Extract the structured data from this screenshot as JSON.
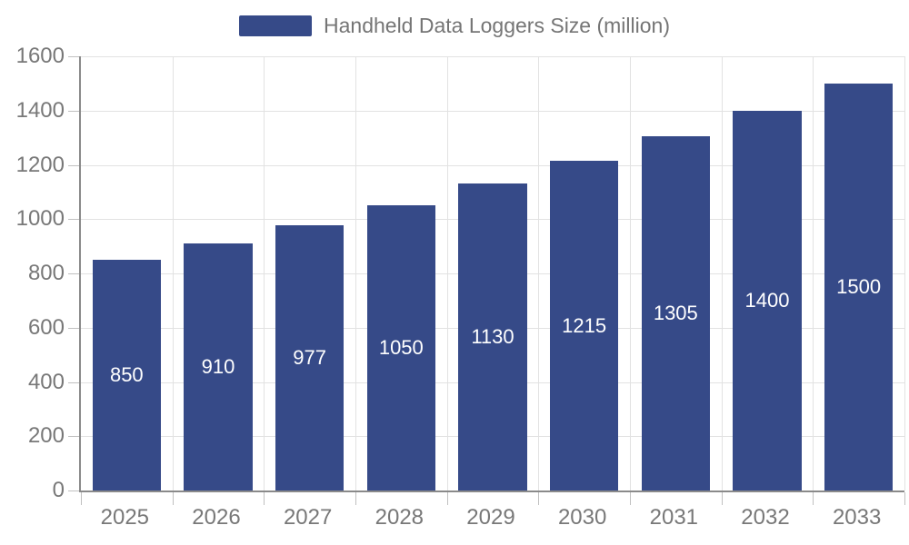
{
  "legend": {
    "label": "Handheld Data Loggers Size (million)"
  },
  "chart_data": {
    "type": "bar",
    "title": "Handheld Data Loggers Size (million)",
    "categories": [
      "2025",
      "2026",
      "2027",
      "2028",
      "2029",
      "2030",
      "2031",
      "2032",
      "2033"
    ],
    "values": [
      850,
      910,
      977,
      1050,
      1130,
      1215,
      1305,
      1400,
      1500
    ],
    "xlabel": "",
    "ylabel": "",
    "ylim": [
      0,
      1600
    ],
    "yticks": [
      0,
      200,
      400,
      600,
      800,
      1000,
      1200,
      1400,
      1600
    ],
    "grid": true,
    "legend_position": "top-center",
    "value_labels": "centered-inside-bars",
    "bar_width_fraction": 0.75,
    "style": {
      "bar_color": "#364a88",
      "value_label_color": "#ffffff",
      "axis_text_color": "#787878",
      "legend_text_color": "#757575",
      "gridline_color": "#e2e2e2",
      "axis_line_color": "#8a8a8a",
      "tick_color": "#c0c0c0",
      "background_color": "#ffffff"
    }
  }
}
